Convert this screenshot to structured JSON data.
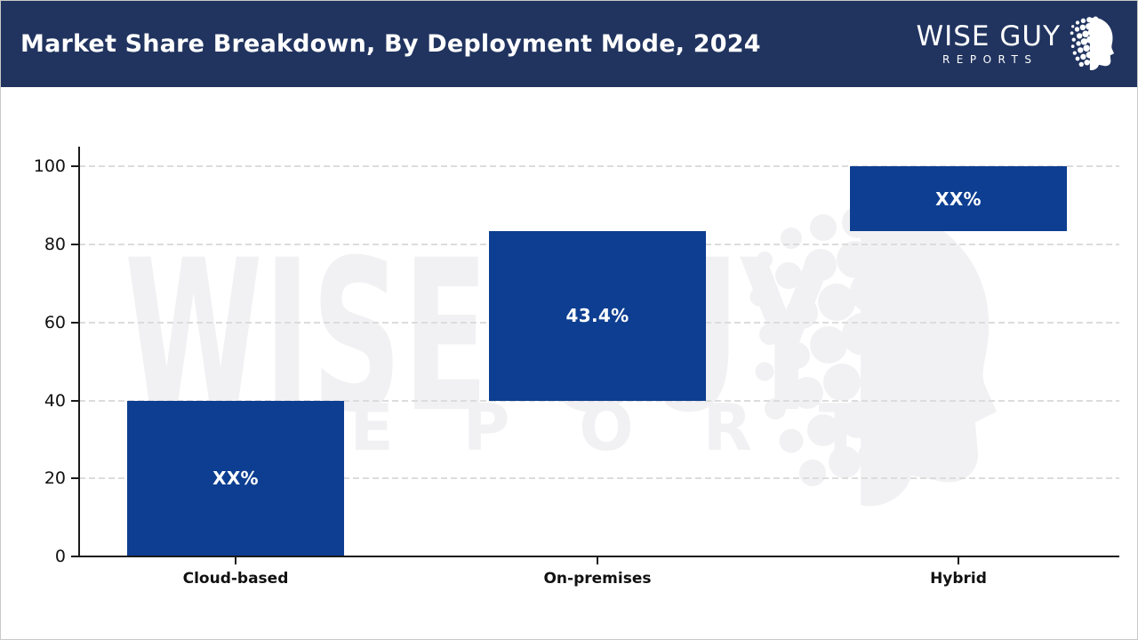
{
  "header": {
    "title": "Market Share Breakdown, By Deployment Mode, 2024",
    "logo": {
      "name": "WISE GUY",
      "sub": "REPORTS"
    }
  },
  "watermark": {
    "big": "WISE GUY",
    "sub": "REPORTS"
  },
  "chart_data": {
    "type": "bar",
    "subtype": "stacked-progression-waterfall",
    "title": "Market Share Breakdown, By Deployment Mode, 2024",
    "xlabel": "",
    "ylabel": "",
    "categories": [
      "Cloud-based",
      "On-premises",
      "Hybrid"
    ],
    "bars": [
      {
        "category": "Cloud-based",
        "from": 0,
        "to": 40,
        "value": 40,
        "label": "XX%"
      },
      {
        "category": "On-premises",
        "from": 40,
        "to": 83.4,
        "value": 43.4,
        "label": "43.4%"
      },
      {
        "category": "Hybrid",
        "from": 83.4,
        "to": 100,
        "value": 16.6,
        "label": "XX%"
      }
    ],
    "yticks": [
      0,
      20,
      40,
      60,
      80,
      100
    ],
    "ylim": [
      0,
      105
    ],
    "grid": "horizontal-dashed",
    "legend": "none"
  },
  "colors": {
    "header_bg": "#21345f",
    "bar": "#0d3e91",
    "axis": "#1a1a1a",
    "grid": "#dcdcdc",
    "watermark": "#f1f1f3"
  }
}
